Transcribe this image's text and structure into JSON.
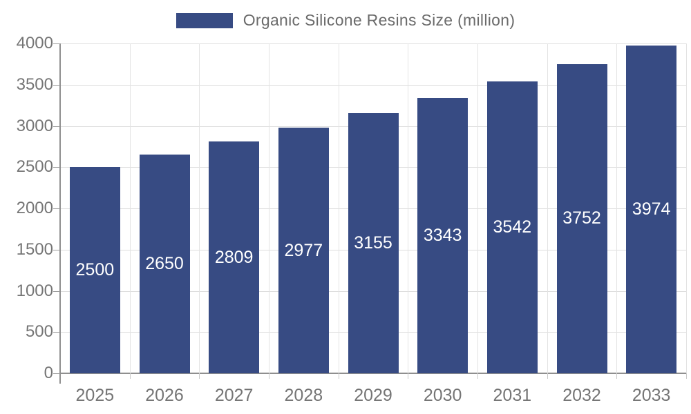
{
  "chart_data": {
    "type": "bar",
    "title": "",
    "legend_label": "Organic Silicone Resins Size (million)",
    "legend_position": "top-center",
    "categories": [
      "2025",
      "2026",
      "2027",
      "2028",
      "2029",
      "2030",
      "2031",
      "2032",
      "2033"
    ],
    "values": [
      2500,
      2650,
      2809,
      2977,
      3155,
      3343,
      3542,
      3752,
      3974
    ],
    "xlabel": "",
    "ylabel": "",
    "ylim": [
      0,
      4000
    ],
    "ytick_step": 500,
    "yticks": [
      0,
      500,
      1000,
      1500,
      2000,
      2500,
      3000,
      3500,
      4000
    ],
    "grid": true,
    "data_labels_inside_bars": true,
    "colors": {
      "bar": "#374b83",
      "bar_label": "#ffffff",
      "axis_text": "#757575",
      "legend_text": "#6b6b6b",
      "gridline": "#dddddd",
      "axis_line": "#8f8f8f"
    }
  }
}
